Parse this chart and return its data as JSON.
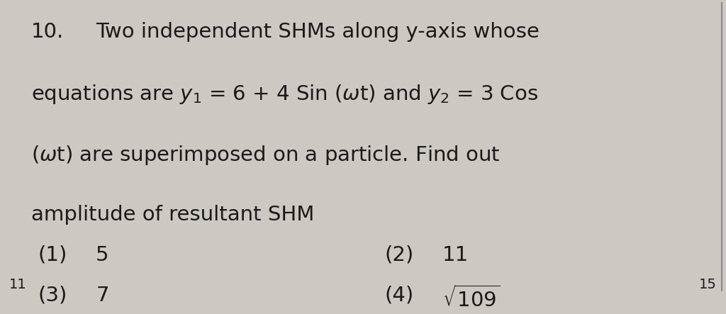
{
  "bg_color": "#cdc8c2",
  "text_color": "#1a1a1a",
  "question_number": "10.",
  "line1": "Two independent SHMs along y-axis whose",
  "line2": "equations are $y_1$ = 6 + 4 Sin ($\\omega$t) and $y_2$ = 3 Cos",
  "line3": "($\\omega$t) are superimposed on a particle. Find out",
  "line4": "amplitude of resultant SHM",
  "opt1_num": "(1)",
  "opt1_val": "5",
  "opt2_num": "(2)",
  "opt2_val": "11",
  "opt3_num": "(3)",
  "opt3_val": "7",
  "opt4_num": "(4)",
  "opt4_val": "$\\sqrt{109}$",
  "bottom_left": "11",
  "bottom_right": "15",
  "font_size_main": 21,
  "font_size_options": 21,
  "font_size_small": 14
}
